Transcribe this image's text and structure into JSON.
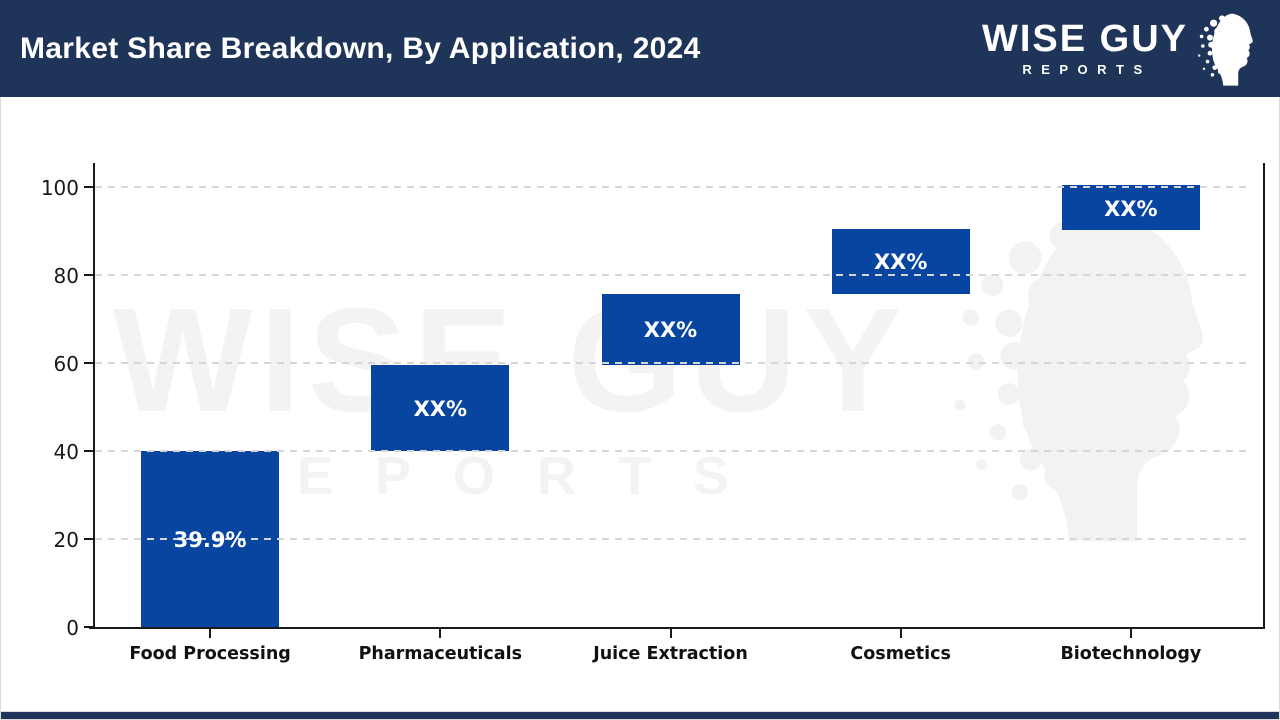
{
  "header": {
    "title": "Market Share Breakdown, By Application, 2024",
    "background": "#1F3459",
    "logo": {
      "line1": "WISE GUY",
      "line2": "REPORTS"
    }
  },
  "watermark": {
    "line1": "WISE GUY",
    "line2": "REPORTS"
  },
  "chart_data": {
    "type": "bar",
    "subtype": "waterfall-floating-bars",
    "title": "Market Share Breakdown, By Application, 2024",
    "categories": [
      "Food Processing",
      "Pharmaceuticals",
      "Juice Extraction",
      "Cosmetics",
      "Biotechnology"
    ],
    "segments": [
      {
        "category": "Food Processing",
        "start": 0,
        "end": 39.9,
        "label": "39.9%"
      },
      {
        "category": "Pharmaceuticals",
        "start": 39.9,
        "end": 59.6,
        "label": "XX%"
      },
      {
        "category": "Juice Extraction",
        "start": 59.6,
        "end": 75.7,
        "label": "XX%"
      },
      {
        "category": "Cosmetics",
        "start": 75.7,
        "end": 90.5,
        "label": "XX%"
      },
      {
        "category": "Biotechnology",
        "start": 90.2,
        "end": 100.4,
        "label": "XX%"
      }
    ],
    "ylabel": "",
    "xlabel": "",
    "yticks": [
      0,
      20,
      40,
      60,
      80,
      100
    ],
    "ylim": [
      0,
      105
    ],
    "bar_color": "#0845A0",
    "value_label_color": "#ffffff",
    "grid": "horizontal-dashed",
    "legend": false
  }
}
